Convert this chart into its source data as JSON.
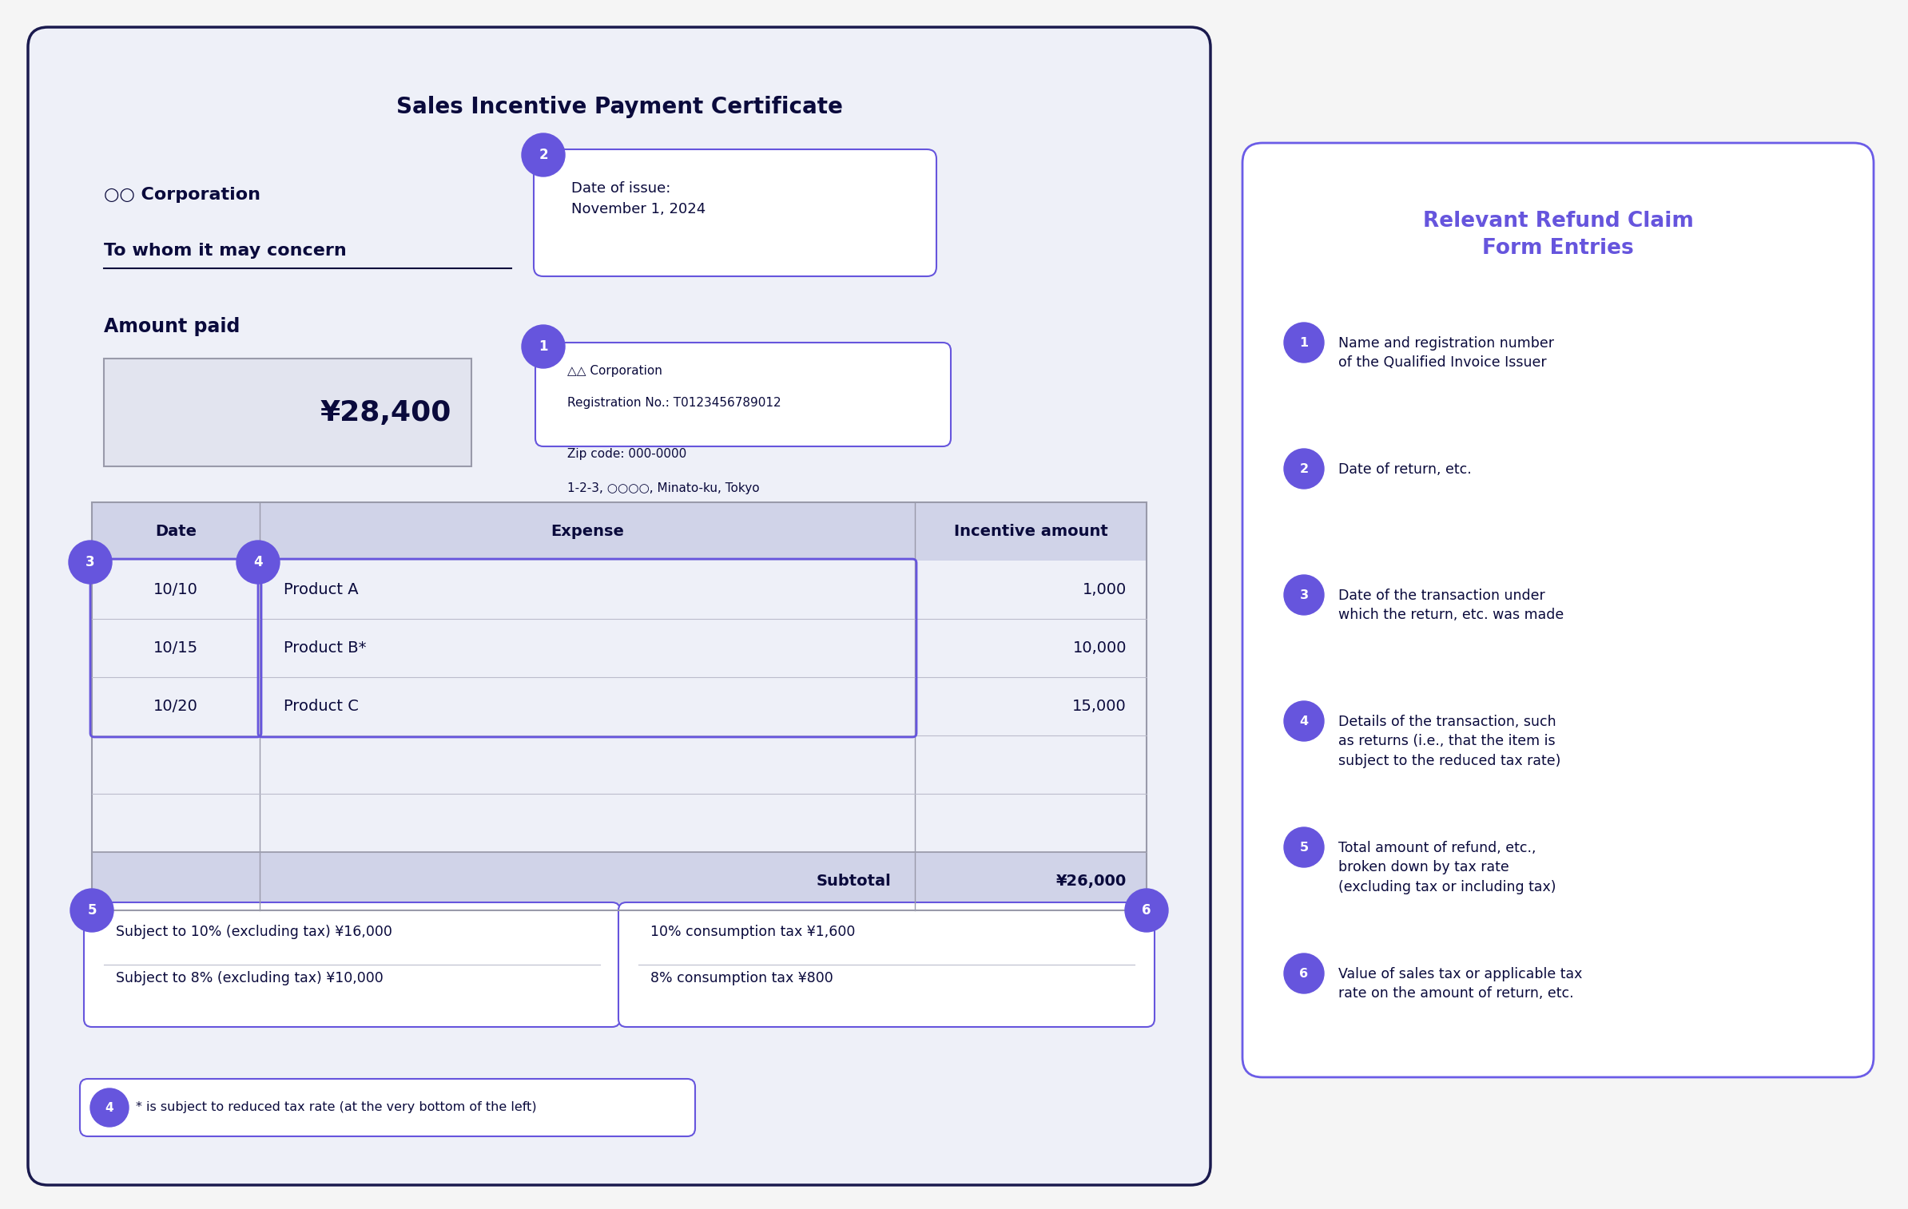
{
  "bg_color": "#f5f5f5",
  "left_panel_bg": "#eef0f8",
  "left_panel_border": "#1a1a4e",
  "right_panel_bg": "#ffffff",
  "right_panel_border": "#6b5ce7",
  "purple": "#6655dd",
  "dark_navy": "#0a0a3c",
  "title": "Sales Incentive Payment Certificate",
  "recipient_line1": "○○ Corporation",
  "recipient_line2": "To whom it may concern",
  "amount_label": "Amount paid",
  "amount_value": "¥28,400",
  "col_date": "Date",
  "col_expense": "Expense",
  "col_incentive": "Incentive amount",
  "rows": [
    {
      "date": "10/10",
      "expense": "Product A",
      "amount": "1,000"
    },
    {
      "date": "10/15",
      "expense": "Product B*",
      "amount": "10,000"
    },
    {
      "date": "10/20",
      "expense": "Product C",
      "amount": "15,000"
    }
  ],
  "subtotal_label": "Subtotal",
  "subtotal_value": "¥26,000",
  "tax_left_row1": "Subject to 10% (excluding tax) ¥16,000",
  "tax_left_row2": "Subject to 8% (excluding tax) ¥10,000",
  "tax_right_row1": "10% consumption tax ¥1,600",
  "tax_right_row2": "8% consumption tax ¥800",
  "footnote": "* is subject to reduced tax rate (at the very bottom of the left)",
  "date_box_label": "Date of issue:\nNovember 1, 2024",
  "issuer_box_line1": "△△ Corporation",
  "issuer_box_line2": "Registration No.: T0123456789012",
  "issuer_addr1": "Zip code: 000-0000",
  "issuer_addr2": "1-2-3, ○○○○, Minato-ku, Tokyo",
  "right_title": "Relevant Refund Claim\nForm Entries",
  "entries": [
    "Name and registration number\nof the Qualified Invoice Issuer",
    "Date of return, etc.",
    "Date of the transaction under\nwhich the return, etc. was made",
    "Details of the transaction, such\nas returns (i.e., that the item is\nsubject to the reduced tax rate)",
    "Total amount of refund, etc.,\nbroken down by tax rate\n(excluding tax or including tax)",
    "Value of sales tax or applicable tax\nrate on the amount of return, etc."
  ]
}
